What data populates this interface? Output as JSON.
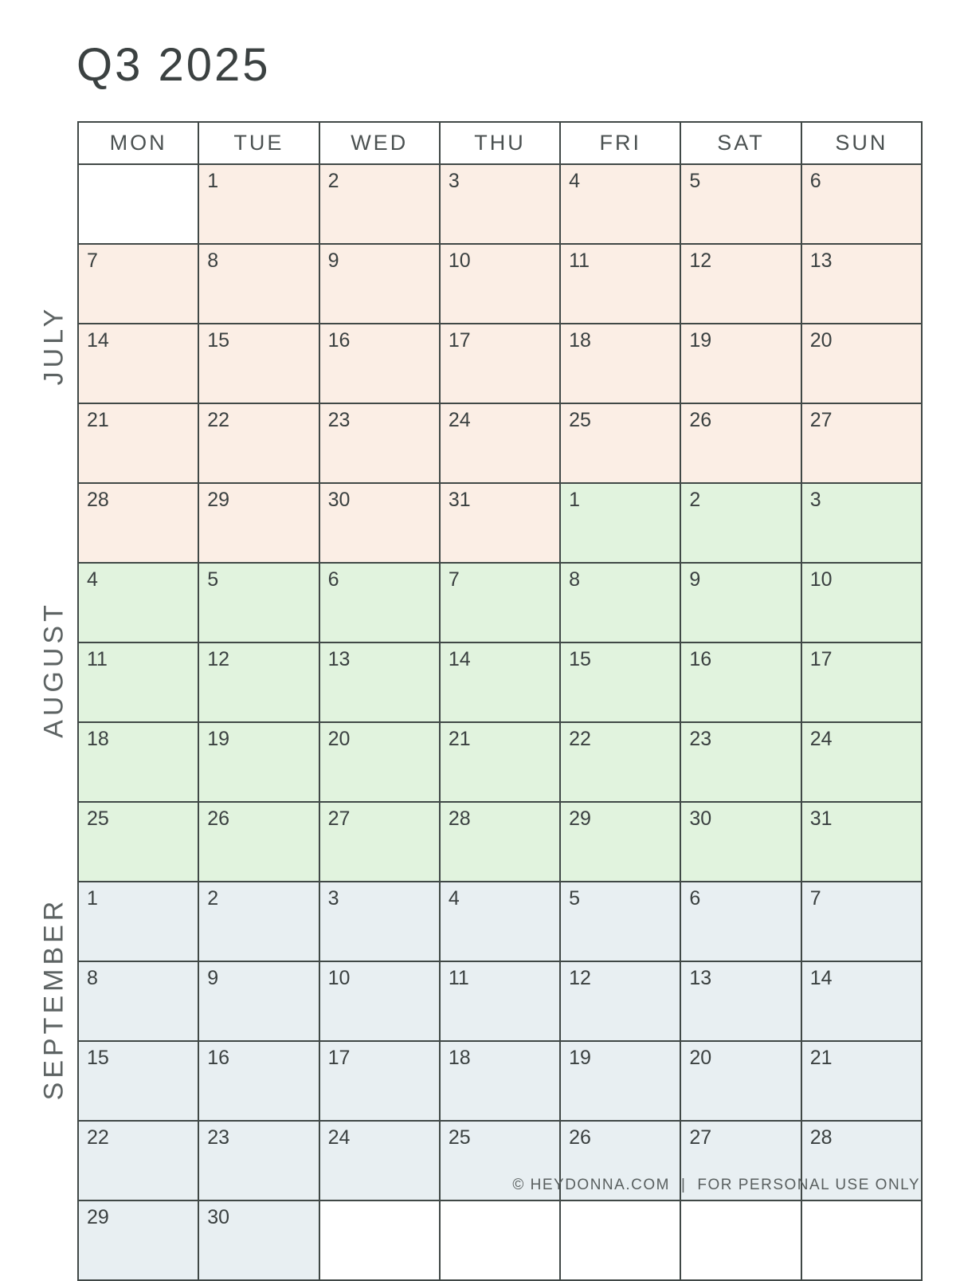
{
  "title": "Q3 2025",
  "weekday_headers": [
    "MON",
    "TUE",
    "WED",
    "THU",
    "FRI",
    "SAT",
    "SUN"
  ],
  "months": {
    "july": {
      "label": "JULY"
    },
    "august": {
      "label": "AUGUST"
    },
    "september": {
      "label": "SEPTEMBER"
    }
  },
  "colors": {
    "july": "#fbeee5",
    "august": "#e1f3de",
    "september": "#e8eff2",
    "border": "#404846"
  },
  "weeks": [
    {
      "cells": [
        {
          "day": "",
          "month": "blank"
        },
        {
          "day": "1",
          "month": "july"
        },
        {
          "day": "2",
          "month": "july"
        },
        {
          "day": "3",
          "month": "july"
        },
        {
          "day": "4",
          "month": "july"
        },
        {
          "day": "5",
          "month": "july"
        },
        {
          "day": "6",
          "month": "july"
        }
      ]
    },
    {
      "cells": [
        {
          "day": "7",
          "month": "july"
        },
        {
          "day": "8",
          "month": "july"
        },
        {
          "day": "9",
          "month": "july"
        },
        {
          "day": "10",
          "month": "july"
        },
        {
          "day": "11",
          "month": "july"
        },
        {
          "day": "12",
          "month": "july"
        },
        {
          "day": "13",
          "month": "july"
        }
      ]
    },
    {
      "cells": [
        {
          "day": "14",
          "month": "july"
        },
        {
          "day": "15",
          "month": "july"
        },
        {
          "day": "16",
          "month": "july"
        },
        {
          "day": "17",
          "month": "july"
        },
        {
          "day": "18",
          "month": "july"
        },
        {
          "day": "19",
          "month": "july"
        },
        {
          "day": "20",
          "month": "july"
        }
      ]
    },
    {
      "cells": [
        {
          "day": "21",
          "month": "july"
        },
        {
          "day": "22",
          "month": "july"
        },
        {
          "day": "23",
          "month": "july"
        },
        {
          "day": "24",
          "month": "july"
        },
        {
          "day": "25",
          "month": "july"
        },
        {
          "day": "26",
          "month": "july"
        },
        {
          "day": "27",
          "month": "july"
        }
      ]
    },
    {
      "cells": [
        {
          "day": "28",
          "month": "july"
        },
        {
          "day": "29",
          "month": "july"
        },
        {
          "day": "30",
          "month": "july"
        },
        {
          "day": "31",
          "month": "july"
        },
        {
          "day": "1",
          "month": "august"
        },
        {
          "day": "2",
          "month": "august"
        },
        {
          "day": "3",
          "month": "august"
        }
      ]
    },
    {
      "cells": [
        {
          "day": "4",
          "month": "august"
        },
        {
          "day": "5",
          "month": "august"
        },
        {
          "day": "6",
          "month": "august"
        },
        {
          "day": "7",
          "month": "august"
        },
        {
          "day": "8",
          "month": "august"
        },
        {
          "day": "9",
          "month": "august"
        },
        {
          "day": "10",
          "month": "august"
        }
      ]
    },
    {
      "cells": [
        {
          "day": "11",
          "month": "august"
        },
        {
          "day": "12",
          "month": "august"
        },
        {
          "day": "13",
          "month": "august"
        },
        {
          "day": "14",
          "month": "august"
        },
        {
          "day": "15",
          "month": "august"
        },
        {
          "day": "16",
          "month": "august"
        },
        {
          "day": "17",
          "month": "august"
        }
      ]
    },
    {
      "cells": [
        {
          "day": "18",
          "month": "august"
        },
        {
          "day": "19",
          "month": "august"
        },
        {
          "day": "20",
          "month": "august"
        },
        {
          "day": "21",
          "month": "august"
        },
        {
          "day": "22",
          "month": "august"
        },
        {
          "day": "23",
          "month": "august"
        },
        {
          "day": "24",
          "month": "august"
        }
      ]
    },
    {
      "cells": [
        {
          "day": "25",
          "month": "august"
        },
        {
          "day": "26",
          "month": "august"
        },
        {
          "day": "27",
          "month": "august"
        },
        {
          "day": "28",
          "month": "august"
        },
        {
          "day": "29",
          "month": "august"
        },
        {
          "day": "30",
          "month": "august"
        },
        {
          "day": "31",
          "month": "august"
        }
      ]
    },
    {
      "cells": [
        {
          "day": "1",
          "month": "september"
        },
        {
          "day": "2",
          "month": "september"
        },
        {
          "day": "3",
          "month": "september"
        },
        {
          "day": "4",
          "month": "september"
        },
        {
          "day": "5",
          "month": "september"
        },
        {
          "day": "6",
          "month": "september"
        },
        {
          "day": "7",
          "month": "september"
        }
      ]
    },
    {
      "cells": [
        {
          "day": "8",
          "month": "september"
        },
        {
          "day": "9",
          "month": "september"
        },
        {
          "day": "10",
          "month": "september"
        },
        {
          "day": "11",
          "month": "september"
        },
        {
          "day": "12",
          "month": "september"
        },
        {
          "day": "13",
          "month": "september"
        },
        {
          "day": "14",
          "month": "september"
        }
      ]
    },
    {
      "cells": [
        {
          "day": "15",
          "month": "september"
        },
        {
          "day": "16",
          "month": "september"
        },
        {
          "day": "17",
          "month": "september"
        },
        {
          "day": "18",
          "month": "september"
        },
        {
          "day": "19",
          "month": "september"
        },
        {
          "day": "20",
          "month": "september"
        },
        {
          "day": "21",
          "month": "september"
        }
      ]
    },
    {
      "cells": [
        {
          "day": "22",
          "month": "september"
        },
        {
          "day": "23",
          "month": "september"
        },
        {
          "day": "24",
          "month": "september"
        },
        {
          "day": "25",
          "month": "september"
        },
        {
          "day": "26",
          "month": "september"
        },
        {
          "day": "27",
          "month": "september"
        },
        {
          "day": "28",
          "month": "september"
        }
      ]
    },
    {
      "cells": [
        {
          "day": "29",
          "month": "september"
        },
        {
          "day": "30",
          "month": "september"
        },
        {
          "day": "",
          "month": "none"
        },
        {
          "day": "",
          "month": "none"
        },
        {
          "day": "",
          "month": "none"
        },
        {
          "day": "",
          "month": "none"
        },
        {
          "day": "",
          "month": "none"
        }
      ]
    }
  ],
  "footer": {
    "copyright": "© HEYDONNA.COM",
    "divider": "|",
    "usage": "FOR PERSONAL USE ONLY"
  }
}
